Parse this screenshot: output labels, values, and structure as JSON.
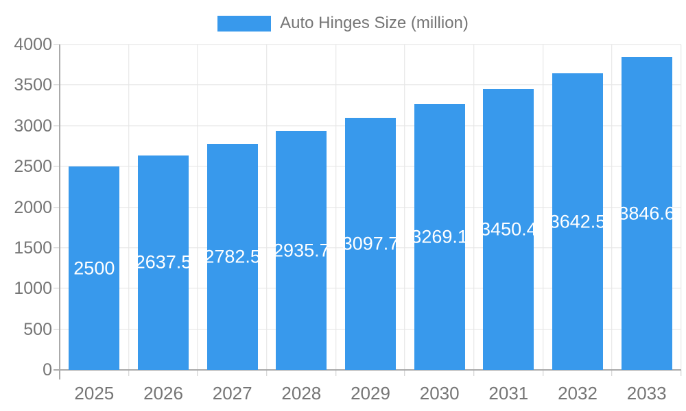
{
  "legend": {
    "label": "Auto Hinges Size (million)"
  },
  "colors": {
    "bar": "#3899EC",
    "grid": "#E4E4E4",
    "axis_line": "#AAAAAA",
    "tick": "#CCCCCC",
    "axis_text": "#757575",
    "bar_label_text": "#FFFFFF",
    "background": "#FFFFFF"
  },
  "chart_data": {
    "type": "bar",
    "title": "",
    "series_name": "Auto Hinges Size (million)",
    "categories": [
      "2025",
      "2026",
      "2027",
      "2028",
      "2029",
      "2030",
      "2031",
      "2032",
      "2033"
    ],
    "values": [
      2500,
      2637.5,
      2782.5,
      2935.7,
      3097.7,
      3269.1,
      3450.4,
      3642.5,
      3846.6
    ],
    "bar_labels": [
      "2500",
      "2637.5",
      "2782.5",
      "2935.7",
      "3097.7",
      "3269.1",
      "3450.4",
      "3642.5",
      "3846.6"
    ],
    "xlabel": "",
    "ylabel": "",
    "ylim": [
      0,
      4000
    ],
    "yticks": [
      0,
      500,
      1000,
      1500,
      2000,
      2500,
      3000,
      3500,
      4000
    ],
    "grid": true,
    "legend_position": "top",
    "bar_label_position": "inside-middle"
  }
}
